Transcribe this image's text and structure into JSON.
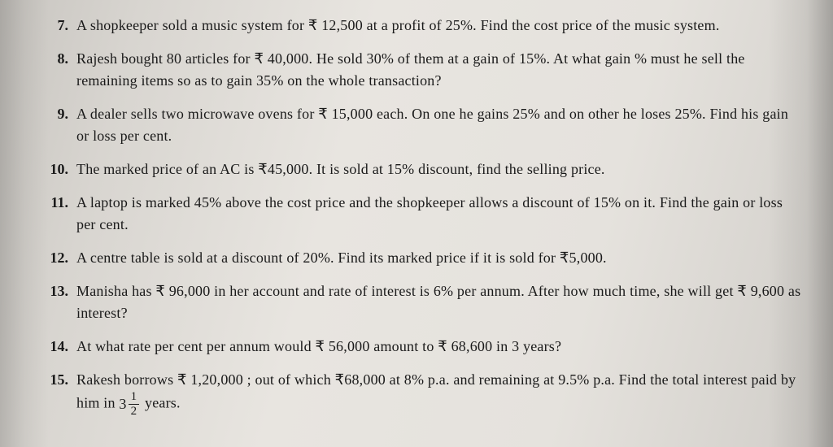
{
  "questions": [
    {
      "num": "7.",
      "text": "A shopkeeper sold a music system for ₹ 12,500 at a profit of 25%. Find the cost price of the music system."
    },
    {
      "num": "8.",
      "text": "Rajesh bought 80 articles for ₹ 40,000. He sold 30% of them at a gain of 15%. At what gain % must he sell the remaining items so as to gain 35% on the whole transaction?"
    },
    {
      "num": "9.",
      "text": "A dealer sells two microwave ovens for ₹ 15,000 each. On one he gains 25% and on other he loses 25%. Find his gain or loss per cent."
    },
    {
      "num": "10.",
      "text": "The marked price of an AC is ₹45,000. It is sold at 15% discount, find the selling price."
    },
    {
      "num": "11.",
      "text": "A laptop is marked 45% above the cost price and the shopkeeper allows a discount of 15% on it. Find the gain or loss per cent."
    },
    {
      "num": "12.",
      "text": "A centre table is sold at a discount of 20%. Find its marked price if it is sold for ₹5,000."
    },
    {
      "num": "13.",
      "text": "Manisha has ₹ 96,000 in her account and rate of interest is 6% per annum. After how much time, she will get ₹ 9,600 as interest?"
    },
    {
      "num": "14.",
      "text": "At what rate per cent per annum would ₹ 56,000 amount to ₹ 68,600 in 3 years?"
    },
    {
      "num": "15.",
      "text_before": "Rakesh borrows ₹ 1,20,000 ; out of which ₹68,000 at 8% p.a. and remaining at 9.5% p.a. Find the total interest paid by him in ",
      "fraction_whole": "3",
      "fraction_num": "1",
      "fraction_den": "2",
      "text_after": " years."
    }
  ]
}
